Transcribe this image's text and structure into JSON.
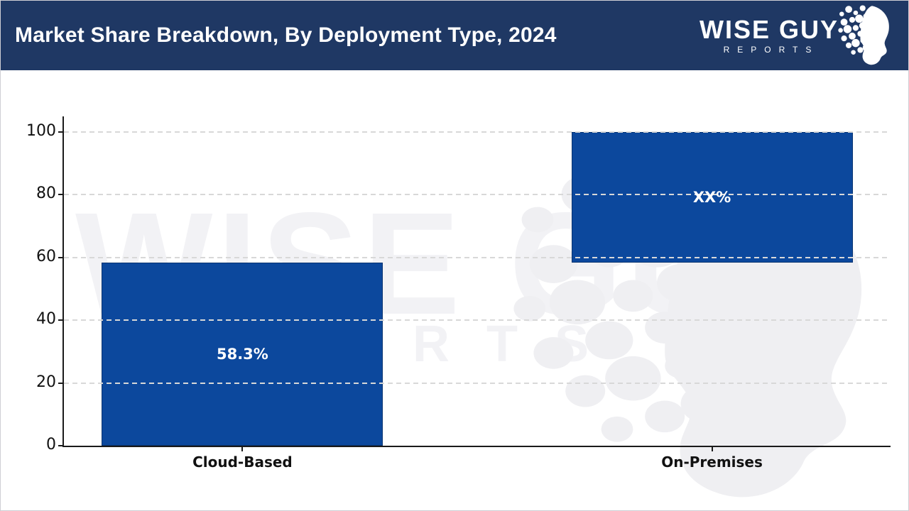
{
  "header": {
    "title": "Market Share Breakdown, By Deployment Type, 2024",
    "brand": {
      "line1": "WISE GUY",
      "line2": "REPORTS"
    }
  },
  "watermark": {
    "line1": "WISE GUY",
    "line2": "REPORTS"
  },
  "chart_data": {
    "type": "bar",
    "title": "Market Share Breakdown, By Deployment Type, 2024",
    "categories": [
      "Cloud-Based",
      "On-Premises"
    ],
    "bars": [
      {
        "category": "Cloud-Based",
        "start": 0,
        "end": 58.3,
        "label": "58.3%"
      },
      {
        "category": "On-Premises",
        "start": 58.3,
        "end": 100,
        "label": "XX%"
      }
    ],
    "yticks": [
      0,
      20,
      40,
      60,
      80,
      100
    ],
    "ylim": [
      0,
      105
    ],
    "xlabel": "",
    "ylabel": "",
    "legend": "none",
    "grid": "horizontal-dashed",
    "bar_color": "#0c489d",
    "bar_label_color": "#ffffff",
    "gridline_color": "#d8d8d8",
    "axis_color": "#1a1a1a",
    "header_color": "#1f3864",
    "watermark_color": "#f2f2f5"
  }
}
